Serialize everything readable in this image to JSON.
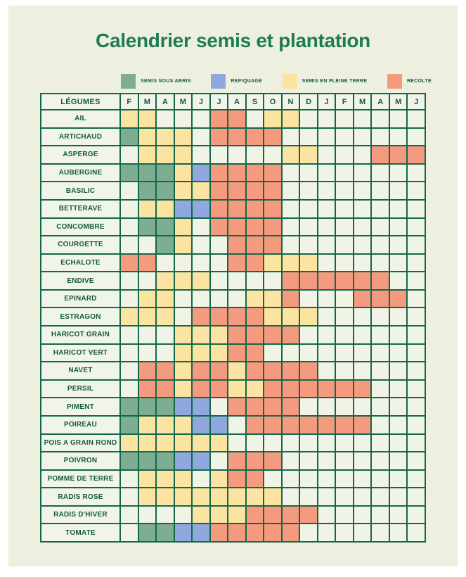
{
  "chart_data": {
    "type": "heatmap",
    "title": "Calendrier semis et plantation",
    "header_label": "LÉGUMES",
    "columns": [
      "F",
      "M",
      "A",
      "M",
      "J",
      "J",
      "A",
      "S",
      "O",
      "N",
      "D",
      "J",
      "F",
      "M",
      "A",
      "M",
      "J"
    ],
    "legend": [
      {
        "label": "SEMIS SOUS ABRIS",
        "key": "G",
        "color": "#7dad92"
      },
      {
        "label": "REPIQUAGE",
        "key": "B",
        "color": "#8fa8dd"
      },
      {
        "label": "SEMIS EN PLEINE TERRE",
        "key": "Y",
        "color": "#fbe3a2"
      },
      {
        "label": "RECOLTE",
        "key": "R",
        "color": "#f49a7f"
      }
    ],
    "color_map": {
      "G": "#7dad92",
      "B": "#8fa8dd",
      "Y": "#fbe3a2",
      "R": "#f49a7f",
      ".": "#f0f4e6"
    },
    "cell_code_meaning": {
      "G": "semis sous abris",
      "B": "repiquage",
      "Y": "semis en pleine terre",
      "R": "recolte",
      ".": "vide"
    },
    "rows": [
      {
        "name": "AIL",
        "cells": "YY...RR.YY......."
      },
      {
        "name": "ARTICHAUD",
        "cells": "GYYY.RRRR........"
      },
      {
        "name": "ASPERGE",
        "cells": ".YYY.....YY...RRR"
      },
      {
        "name": "AUBERGINE",
        "cells": "GGGYBRRRR........"
      },
      {
        "name": "BASILIC",
        "cells": ".GGYYRRRR........"
      },
      {
        "name": "BETTERAVE",
        "cells": ".YYBBRRRR........"
      },
      {
        "name": "CONCOMBRE",
        "cells": ".GGY.RRRR........"
      },
      {
        "name": "COURGETTE",
        "cells": "..GY..RRR........"
      },
      {
        "name": "ECHALOTE",
        "cells": "RR....RRYYY......"
      },
      {
        "name": "ENDIVE",
        "cells": "..YYY....RRRRRR.."
      },
      {
        "name": "EPINARD",
        "cells": ".YY....YYR...RRR."
      },
      {
        "name": "ESTRAGON",
        "cells": "YYY.RRRRYYY......"
      },
      {
        "name": "HARICOT GRAIN",
        "cells": "...YYYRRRR......."
      },
      {
        "name": "HARICOT VERT",
        "cells": "...YYYRR........."
      },
      {
        "name": "NAVET",
        "cells": ".RRYRRYRRRR......"
      },
      {
        "name": "PERSIL",
        "cells": ".RRYRRYYRRRRRR..."
      },
      {
        "name": "PIMENT",
        "cells": "GGGBB.RRRR......."
      },
      {
        "name": "POIREAU",
        "cells": "GYYYBB.RRRRRRR..."
      },
      {
        "name": "POIS A GRAIN ROND",
        "cells": "YYYYYY..........."
      },
      {
        "name": "POIVRON",
        "cells": "GGGBB.RRR........"
      },
      {
        "name": "POMME DE TERRE",
        "cells": ".YYY.YRR........."
      },
      {
        "name": "RADIS ROSE",
        "cells": ".YYYYYYYY........"
      },
      {
        "name": "RADIS D'HIVER",
        "cells": "....YYYRRRR......"
      },
      {
        "name": "TOMATE",
        "cells": ".GGBBRRRRR......."
      }
    ],
    "layout_hints": {
      "legend_position": "top",
      "grid": true,
      "grid_color": "#15674a",
      "background_color": "#edf0df",
      "title_color": "#1e7b56",
      "text_color": "#14583e"
    }
  }
}
